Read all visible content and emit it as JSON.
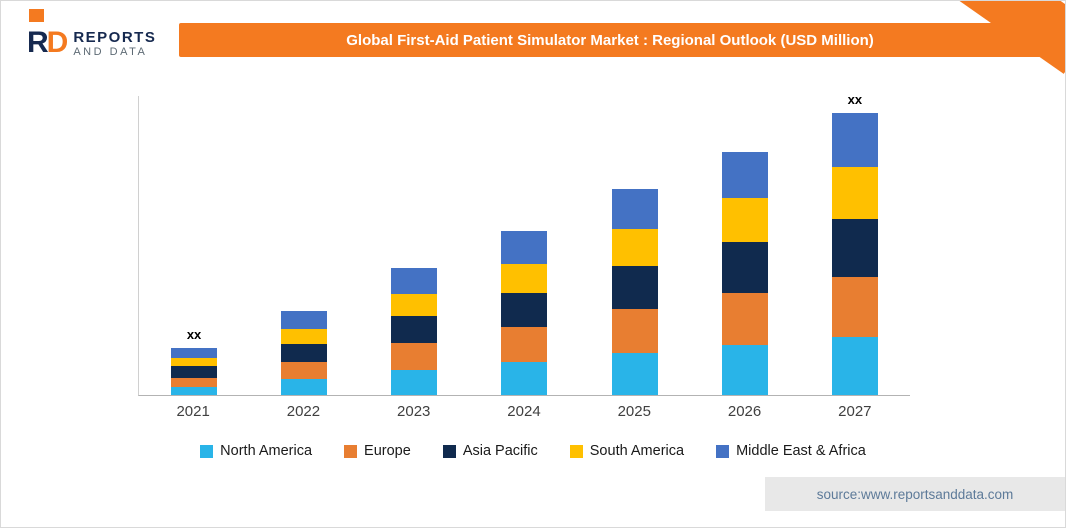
{
  "header": {
    "title": "Global First-Aid Patient Simulator Market : Regional Outlook (USD Million)",
    "banner_color": "#f47a20",
    "logo": {
      "mark_r": "R",
      "mark_d": "D",
      "line1": "REPORTS",
      "line2": "AND DATA"
    }
  },
  "chart_data": {
    "type": "bar",
    "stacked": true,
    "title": "Global First-Aid Patient Simulator Market : Regional Outlook (USD Million)",
    "xlabel": "",
    "ylabel": "",
    "ylim": [
      0,
      300
    ],
    "grid": false,
    "legend_position": "bottom",
    "categories": [
      "2021",
      "2022",
      "2023",
      "2024",
      "2025",
      "2026",
      "2027"
    ],
    "series": [
      {
        "name": "North America",
        "color": "#29b4e8",
        "values": [
          8,
          16,
          25,
          33,
          42,
          50,
          58
        ]
      },
      {
        "name": "Europe",
        "color": "#e87e31",
        "values": [
          9,
          17,
          27,
          35,
          44,
          52,
          60
        ]
      },
      {
        "name": "Asia Pacific",
        "color": "#102a4e",
        "values": [
          12,
          18,
          27,
          34,
          43,
          51,
          58
        ]
      },
      {
        "name": "South America",
        "color": "#ffc000",
        "values": [
          8,
          15,
          22,
          29,
          37,
          44,
          52
        ]
      },
      {
        "name": "Middle East & Africa",
        "color": "#4472c4",
        "values": [
          10,
          18,
          26,
          33,
          40,
          46,
          54
        ]
      }
    ],
    "bar_labels": [
      "xx",
      "",
      "",
      "",
      "",
      "",
      "xx"
    ]
  },
  "footer": {
    "source": "source:www.reportsanddata.com"
  }
}
